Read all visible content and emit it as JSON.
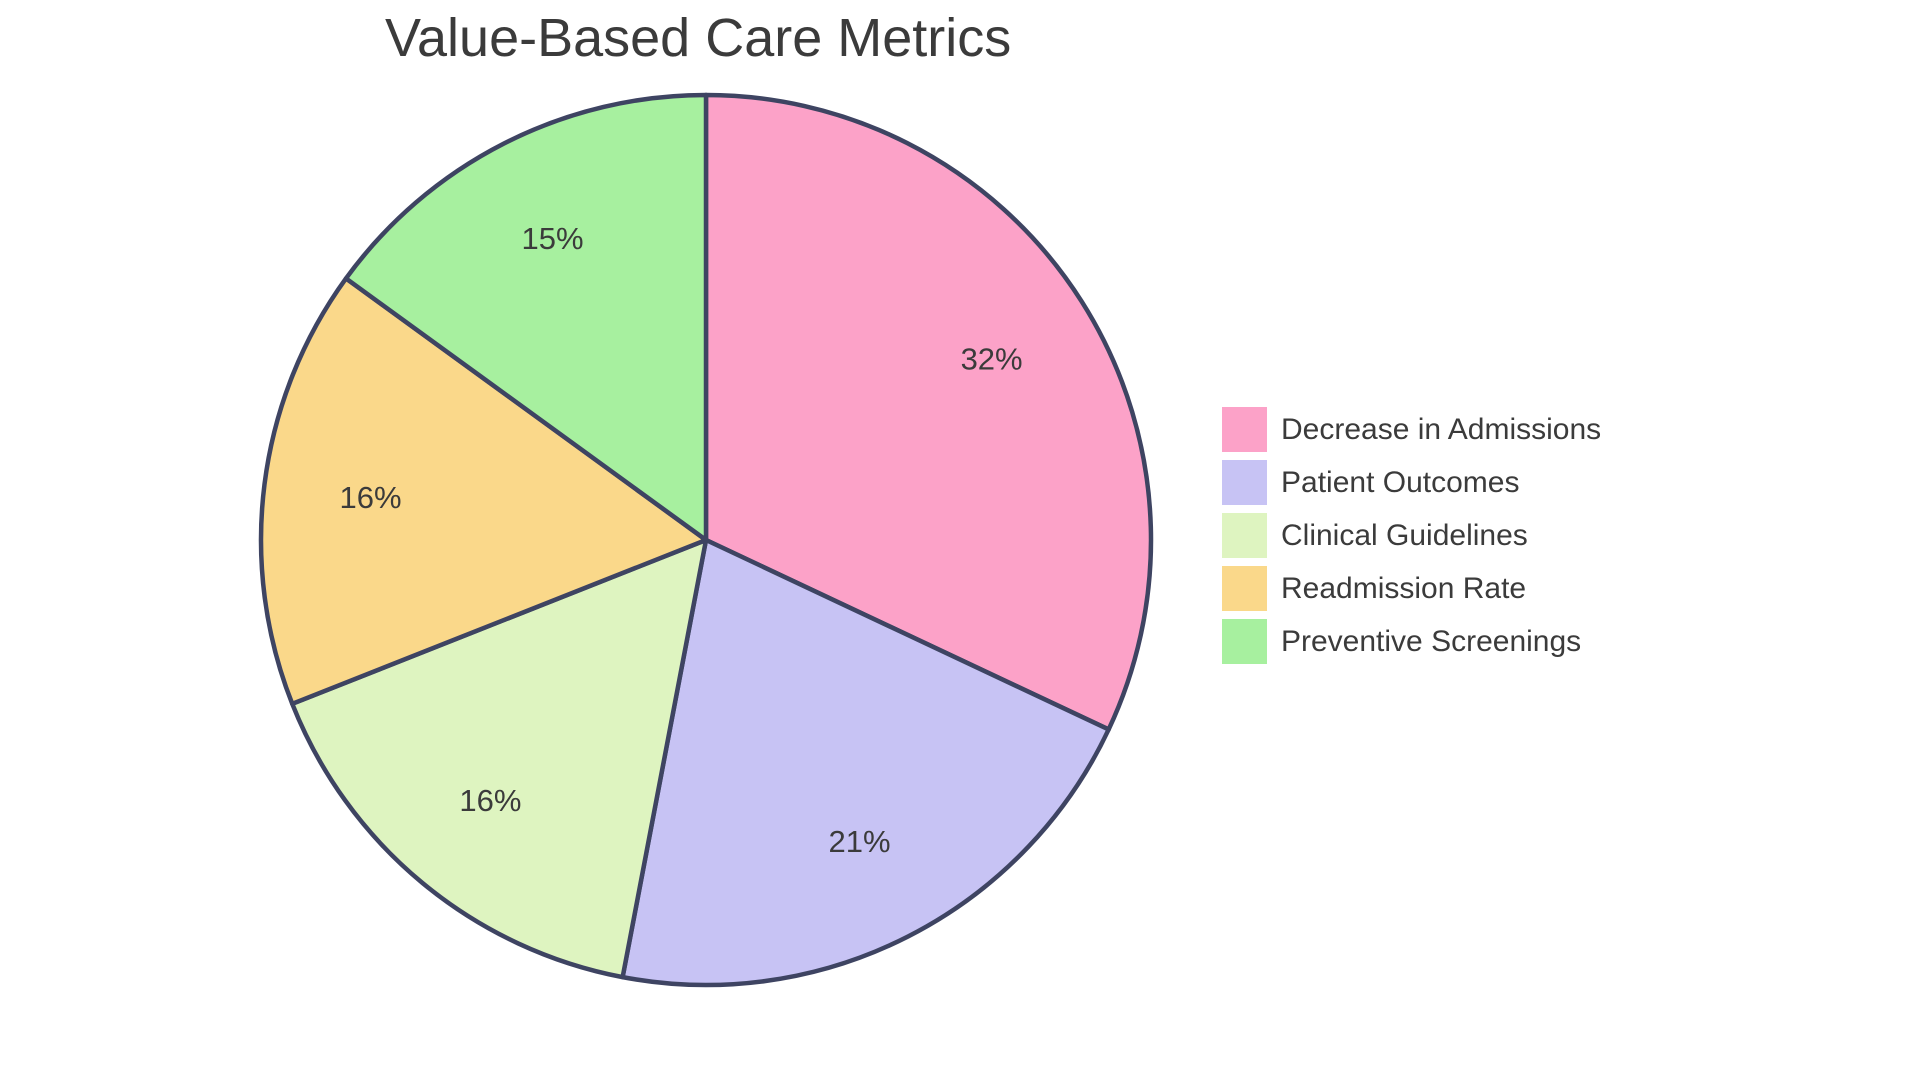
{
  "page": {
    "background_color": "#FFFFFF"
  },
  "chart_data": {
    "type": "pie",
    "title": "Value-Based Care Metrics",
    "slices": [
      {
        "label": "Decrease in Admissions",
        "value": 32,
        "pct_label": "32%",
        "color": "#FCA2C8"
      },
      {
        "label": "Patient Outcomes",
        "value": 21,
        "pct_label": "21%",
        "color": "#C7C3F4"
      },
      {
        "label": "Clinical Guidelines",
        "value": 16,
        "pct_label": "16%",
        "color": "#DEF4C0"
      },
      {
        "label": "Readmission Rate",
        "value": 16,
        "pct_label": "16%",
        "color": "#FAD88A"
      },
      {
        "label": "Preventive Screenings",
        "value": 15,
        "pct_label": "15%",
        "color": "#A7F09F"
      }
    ],
    "start_angle_deg": 0,
    "direction": "clockwise",
    "stroke_color": "#3E4462",
    "stroke_width": 4.5,
    "label_color": "#3B3B3B",
    "label_radius_fraction": 0.76,
    "legend_position": "right-center",
    "legend": [
      "Decrease in Admissions",
      "Patient Outcomes",
      "Clinical Guidelines",
      "Readmission Rate",
      "Preventive Screenings"
    ]
  }
}
